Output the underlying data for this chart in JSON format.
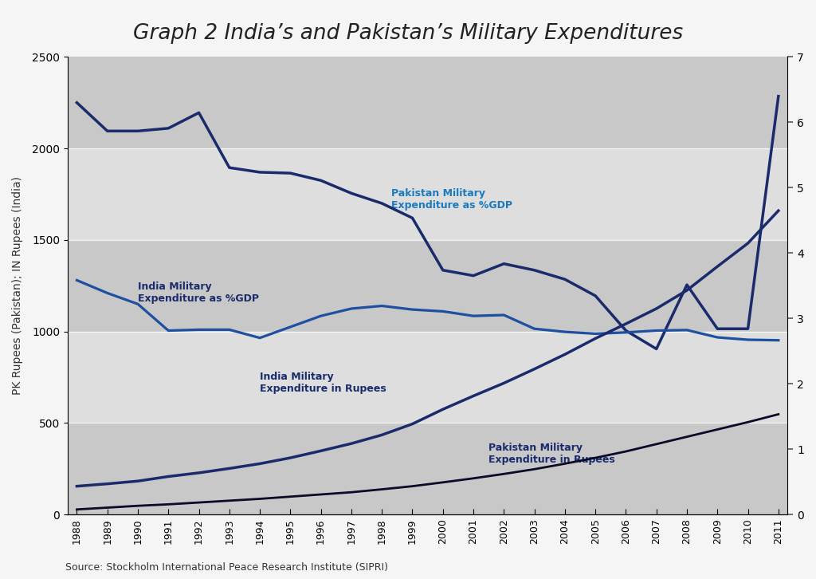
{
  "title": "Graph 2 India’s and Pakistan’s Military Expenditures",
  "source": "Source: Stockholm International Peace Research Institute (SIPRI)",
  "years": [
    1988,
    1989,
    1990,
    1991,
    1992,
    1993,
    1994,
    1995,
    1996,
    1997,
    1998,
    1999,
    2000,
    2001,
    2002,
    2003,
    2004,
    2005,
    2006,
    2007,
    2008,
    2009,
    2010,
    2011
  ],
  "india_rupees": [
    155,
    168,
    183,
    208,
    228,
    252,
    278,
    310,
    348,
    388,
    435,
    495,
    575,
    648,
    718,
    795,
    875,
    962,
    1042,
    1125,
    1225,
    1355,
    1482,
    1660
  ],
  "pakistan_rupees": [
    28,
    38,
    48,
    56,
    66,
    76,
    86,
    98,
    110,
    122,
    138,
    155,
    176,
    198,
    222,
    248,
    278,
    310,
    345,
    385,
    425,
    465,
    505,
    548
  ],
  "india_gdp": [
    1280,
    1210,
    1150,
    1005,
    1010,
    1010,
    965,
    1025,
    1085,
    1125,
    1140,
    1120,
    1110,
    1085,
    1090,
    1015,
    998,
    988,
    995,
    1005,
    1008,
    968,
    955,
    952
  ],
  "pakistan_gdp": [
    2250,
    2095,
    2095,
    2110,
    2195,
    1895,
    1870,
    1865,
    1825,
    1755,
    1700,
    1620,
    1335,
    1305,
    1370,
    1335,
    1285,
    1195,
    1005,
    905,
    1255,
    1015,
    1015,
    2285
  ],
  "ylabel_left": "PK Rupees (Pakistan); IN Rupees (India)",
  "ylim_left": [
    0,
    2500
  ],
  "ylim_right": [
    0,
    7
  ],
  "yticks_left": [
    0,
    500,
    1000,
    1500,
    2000,
    2500
  ],
  "yticks_right": [
    0,
    1,
    2,
    3,
    4,
    5,
    6,
    7
  ],
  "bg_color": "#f5f5f5",
  "band_colors_alt": [
    "#d2d2d2",
    "#e6e6e6"
  ],
  "line_dark_navy": "#1a2b6b",
  "line_medium_blue": "#1e4fa0",
  "line_near_black": "#0a0a2a",
  "ann_cyan_blue": "#1a7abf",
  "ann_dark_blue": "#1a2b6b",
  "title_fontsize": 19,
  "axis_fontsize": 10,
  "annotation_fontsize": 9
}
